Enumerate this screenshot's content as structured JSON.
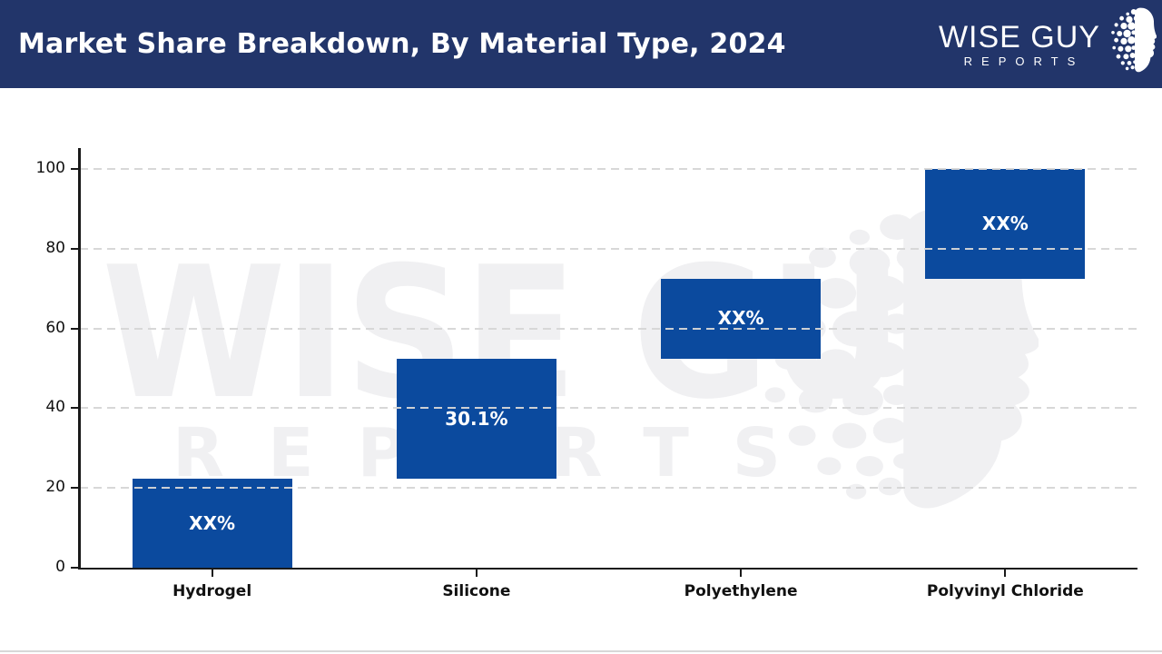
{
  "header": {
    "title": "Market Share Breakdown, By Material Type, 2024",
    "logo": {
      "line1": "WISE GUY",
      "line2": "REPORTS"
    }
  },
  "watermark": {
    "line1": "WISE GUY",
    "line2": "REPORTS"
  },
  "theme": {
    "header_bg": "#22356a",
    "bar_color": "#0b4a9e",
    "grid_color": "#d6d6d6",
    "axis_color": "#1a1a1a",
    "watermark_color": "#f0f0f2",
    "title_color": "#ffffff",
    "bar_label_color": "#ffffff"
  },
  "chart_data": {
    "type": "bar",
    "subtype": "stacked-waterfall",
    "title": "Market Share Breakdown, By Material Type, 2024",
    "categories": [
      "Hydrogel",
      "Silicone",
      "Polyethylene",
      "Polyvinyl Chloride"
    ],
    "segments": [
      {
        "category": "Hydrogel",
        "start": 0,
        "end": 22.4,
        "value": 22.4,
        "label": "XX%"
      },
      {
        "category": "Silicone",
        "start": 22.4,
        "end": 52.5,
        "value": 30.1,
        "label": "30.1%"
      },
      {
        "category": "Polyethylene",
        "start": 52.5,
        "end": 72.5,
        "value": 20.0,
        "label": "XX%"
      },
      {
        "category": "Polyvinyl Chloride",
        "start": 72.5,
        "end": 100,
        "value": 27.5,
        "label": "XX%"
      }
    ],
    "xlabel": "",
    "ylabel": "",
    "yticks": [
      0,
      20,
      40,
      60,
      80,
      100
    ],
    "ylim": [
      0,
      105
    ],
    "grid": "horizontal-dashed",
    "legend": "none"
  }
}
